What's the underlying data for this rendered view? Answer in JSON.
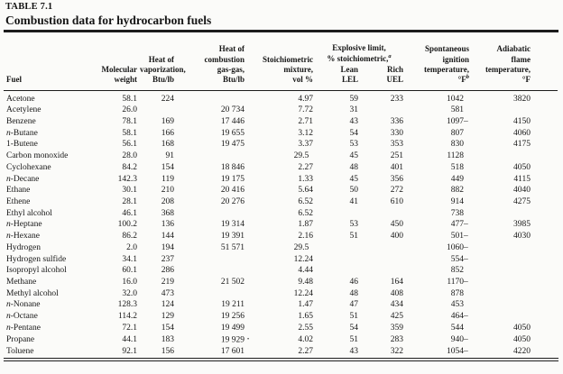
{
  "title": {
    "label": "TABLE 7.1",
    "subtitle": "Combustion data for hydrocarbon fuels"
  },
  "colors": {
    "paper": "#fbfbf9",
    "ink": "#161616",
    "rule": "#1c1c1c"
  },
  "table": {
    "columns": {
      "fuel": {
        "l1": "Fuel"
      },
      "mw": {
        "l1": "Molecular",
        "l2": "weight"
      },
      "hov": {
        "l1": "Heat of",
        "l2": "vaporization,",
        "l3": "Btu/lb"
      },
      "hoc": {
        "l1": "Heat of",
        "l2": "combustion",
        "l3": "gas-gas,",
        "l4": "Btu/lb"
      },
      "stoich": {
        "l1": "Stoichiometric",
        "l2": "mixture,",
        "l3": "vol %"
      },
      "explosive": {
        "l1": "Explosive limit,",
        "l2": "% stoichiometric,",
        "sup": "a"
      },
      "lean": {
        "l1": "Lean",
        "l2": "LEL"
      },
      "rich": {
        "l1": "Rich",
        "l2": "UEL"
      },
      "ignition": {
        "l1": "Spontaneous",
        "l2": "ignition",
        "l3": "temperature,",
        "l4": "°F",
        "sup": "b"
      },
      "flame": {
        "l1": "Adiabatic",
        "l2": "flame",
        "l3": "temperature,",
        "l4": "°F"
      }
    },
    "rows": [
      {
        "fuel": "Acetone",
        "mw": "58.1",
        "hov": "224",
        "hoc": "",
        "stoich": "4.97",
        "lean": "59",
        "rich": "233",
        "ignition": "1042",
        "flame": "3820"
      },
      {
        "fuel": "Acetylene",
        "mw": "26.0",
        "hov": "",
        "hoc": "20 734",
        "stoich": "7.72",
        "lean": "31",
        "rich": "",
        "ignition": "581",
        "flame": ""
      },
      {
        "fuel": "Benzene",
        "mw": "78.1",
        "hov": "169",
        "hoc": "17 446",
        "stoich": "2.71",
        "lean": "43",
        "rich": "336",
        "ignition": "1097–",
        "flame": "4150"
      },
      {
        "fuel": "n-Butane",
        "mw": "58.1",
        "hov": "166",
        "hoc": "19 655",
        "stoich": "3.12",
        "lean": "54",
        "rich": "330",
        "ignition": "807",
        "flame": "4060"
      },
      {
        "fuel": "1-Butene",
        "mw": "56.1",
        "hov": "168",
        "hoc": "19 475",
        "stoich": "3.37",
        "lean": "53",
        "rich": "353",
        "ignition": "830",
        "flame": "4175"
      },
      {
        "fuel": "Carbon monoxide",
        "mw": "28.0",
        "hov": "91",
        "hoc": "",
        "stoich": "29.5",
        "lean": "45",
        "rich": "251",
        "ignition": "1128",
        "flame": ""
      },
      {
        "fuel": "Cyclohexane",
        "mw": "84.2",
        "hov": "154",
        "hoc": "18 846",
        "stoich": "2.27",
        "lean": "48",
        "rich": "401",
        "ignition": "518",
        "flame": "4050"
      },
      {
        "fuel": "n-Decane",
        "mw": "142.3",
        "hov": "119",
        "hoc": "19 175",
        "stoich": "1.33",
        "lean": "45",
        "rich": "356",
        "ignition": "449",
        "flame": "4115"
      },
      {
        "fuel": "Ethane",
        "mw": "30.1",
        "hov": "210",
        "hoc": "20 416",
        "stoich": "5.64",
        "lean": "50",
        "rich": "272",
        "ignition": "882",
        "flame": "4040"
      },
      {
        "fuel": "Ethene",
        "mw": "28.1",
        "hov": "208",
        "hoc": "20 276",
        "stoich": "6.52",
        "lean": "41",
        "rich": "610",
        "ignition": "914",
        "flame": "4275"
      },
      {
        "fuel": "Ethyl alcohol",
        "mw": "46.1",
        "hov": "368",
        "hoc": "",
        "stoich": "6.52",
        "lean": "",
        "rich": "",
        "ignition": "738",
        "flame": ""
      },
      {
        "fuel": "n-Heptane",
        "mw": "100.2",
        "hov": "136",
        "hoc": "19 314",
        "stoich": "1.87",
        "lean": "53",
        "rich": "450",
        "ignition": "477–",
        "flame": "3985"
      },
      {
        "fuel": "n-Hexane",
        "mw": "86.2",
        "hov": "144",
        "hoc": "19 391",
        "stoich": "2.16",
        "lean": "51",
        "rich": "400",
        "ignition": "501–",
        "flame": "4030"
      },
      {
        "fuel": "Hydrogen",
        "mw": "2.0",
        "hov": "194",
        "hoc": "51 571",
        "stoich": "29.5",
        "lean": "",
        "rich": "",
        "ignition": "1060–",
        "flame": ""
      },
      {
        "fuel": "Hydrogen sulfide",
        "mw": "34.1",
        "hov": "237",
        "hoc": "",
        "stoich": "12.24",
        "lean": "",
        "rich": "",
        "ignition": "554–",
        "flame": ""
      },
      {
        "fuel": "Isopropyl alcohol",
        "mw": "60.1",
        "hov": "286",
        "hoc": "",
        "stoich": "4.44",
        "lean": "",
        "rich": "",
        "ignition": "852",
        "flame": ""
      },
      {
        "fuel": "Methane",
        "mw": "16.0",
        "hov": "219",
        "hoc": "21 502",
        "stoich": "9.48",
        "lean": "46",
        "rich": "164",
        "ignition": "1170–",
        "flame": ""
      },
      {
        "fuel": "Methyl alcohol",
        "mw": "32.0",
        "hov": "473",
        "hoc": "",
        "stoich": "12.24",
        "lean": "48",
        "rich": "408",
        "ignition": "878",
        "flame": ""
      },
      {
        "fuel": "n-Nonane",
        "mw": "128.3",
        "hov": "124",
        "hoc": "19 211",
        "stoich": "1.47",
        "lean": "47",
        "rich": "434",
        "ignition": "453",
        "flame": ""
      },
      {
        "fuel": "n-Octane",
        "mw": "114.2",
        "hov": "129",
        "hoc": "19 256",
        "stoich": "1.65",
        "lean": "51",
        "rich": "425",
        "ignition": "464–",
        "flame": ""
      },
      {
        "fuel": "n-Pentane",
        "mw": "72.1",
        "hov": "154",
        "hoc": "19 499",
        "stoich": "2.55",
        "lean": "54",
        "rich": "359",
        "ignition": "544",
        "flame": "4050"
      },
      {
        "fuel": "Propane",
        "mw": "44.1",
        "hov": "183",
        "hoc": "19 929",
        "hoc_note": "•",
        "stoich": "4.02",
        "lean": "51",
        "rich": "283",
        "ignition": "940–",
        "flame": "4050"
      },
      {
        "fuel": "Toluene",
        "mw": "92.1",
        "hov": "156",
        "hoc": "17 601",
        "stoich": "2.27",
        "lean": "43",
        "rich": "322",
        "ignition": "1054–",
        "flame": "4220"
      }
    ]
  }
}
